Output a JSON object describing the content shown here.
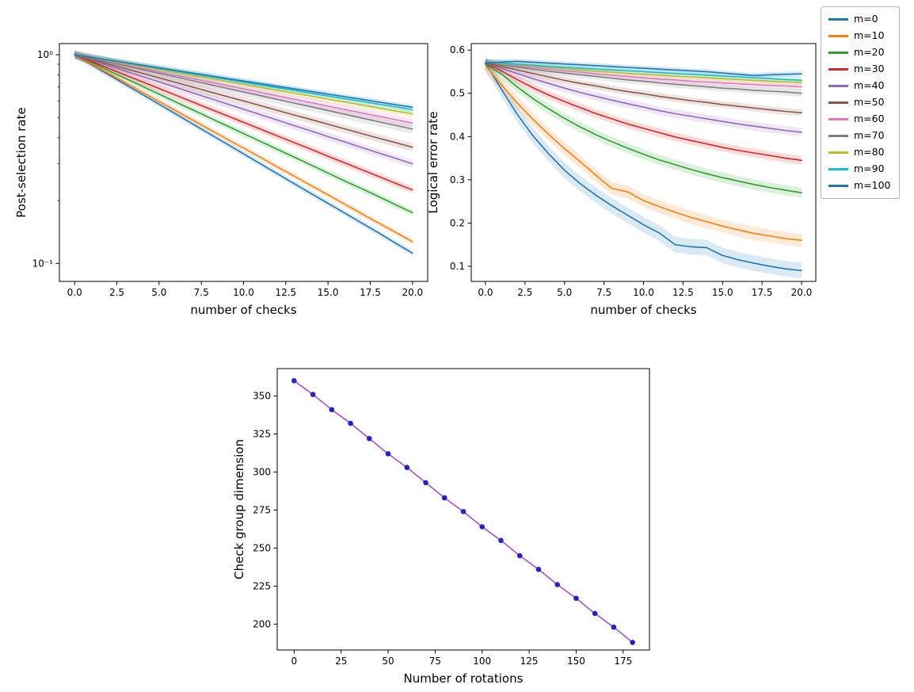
{
  "figure": {
    "background": "#ffffff"
  },
  "legend": {
    "entries": [
      {
        "label": "m=0",
        "color": "#1f77b4"
      },
      {
        "label": "m=10",
        "color": "#ff7f0e"
      },
      {
        "label": "m=20",
        "color": "#2ca02c"
      },
      {
        "label": "m=30",
        "color": "#d62728"
      },
      {
        "label": "m=40",
        "color": "#9467bd"
      },
      {
        "label": "m=50",
        "color": "#8c564b"
      },
      {
        "label": "m=60",
        "color": "#e377c2"
      },
      {
        "label": "m=70",
        "color": "#7f7f7f"
      },
      {
        "label": "m=80",
        "color": "#bcbd22"
      },
      {
        "label": "m=90",
        "color": "#17becf"
      },
      {
        "label": "m=100",
        "color": "#1f77b4"
      }
    ]
  },
  "chart_data": [
    {
      "id": "post-selection-rate",
      "type": "line",
      "title": "",
      "xlabel": "number of checks",
      "ylabel": "Post-selection rate",
      "yscale": "log",
      "grid": false,
      "xlim": [
        -0.9,
        20.9
      ],
      "ylim": [
        0.082,
        1.13
      ],
      "x": [
        0,
        1,
        2,
        3,
        4,
        5,
        6,
        7,
        8,
        9,
        10,
        11,
        12,
        13,
        14,
        15,
        16,
        17,
        18,
        19,
        20
      ],
      "xticks": [
        {
          "v": 0,
          "label": "0.0"
        },
        {
          "v": 2.5,
          "label": "2.5"
        },
        {
          "v": 5,
          "label": "5.0"
        },
        {
          "v": 7.5,
          "label": "7.5"
        },
        {
          "v": 10,
          "label": "10.0"
        },
        {
          "v": 12.5,
          "label": "12.5"
        },
        {
          "v": 15,
          "label": "15.0"
        },
        {
          "v": 17.5,
          "label": "17.5"
        },
        {
          "v": 20,
          "label": "20.0"
        }
      ],
      "yticks": [
        {
          "v": 1.0,
          "label": "10⁰"
        },
        {
          "v": 0.1,
          "label": "10⁻¹"
        }
      ],
      "yminorticks": [
        0.2,
        0.3,
        0.4,
        0.5,
        0.6,
        0.7,
        0.8,
        0.9
      ],
      "series": [
        {
          "name": "m=0",
          "color": "#1f77b4",
          "band_rel": 0.03,
          "y": [
            1.0,
            0.896,
            0.803,
            0.72,
            0.646,
            0.579,
            0.519,
            0.465,
            0.417,
            0.374,
            0.335,
            0.3,
            0.269,
            0.241,
            0.216,
            0.194,
            0.174,
            0.156,
            0.14,
            0.125,
            0.112
          ]
        },
        {
          "name": "m=10",
          "color": "#ff7f0e",
          "band_rel": 0.03,
          "y": [
            1.0,
            0.902,
            0.814,
            0.734,
            0.662,
            0.597,
            0.539,
            0.486,
            0.438,
            0.395,
            0.357,
            0.322,
            0.29,
            0.262,
            0.236,
            0.213,
            0.192,
            0.173,
            0.156,
            0.141,
            0.127
          ]
        },
        {
          "name": "m=20",
          "color": "#2ca02c",
          "band_rel": 0.035,
          "y": [
            1.0,
            0.917,
            0.84,
            0.77,
            0.706,
            0.647,
            0.593,
            0.544,
            0.498,
            0.457,
            0.419,
            0.384,
            0.352,
            0.323,
            0.296,
            0.271,
            0.248,
            0.228,
            0.209,
            0.191,
            0.175
          ]
        },
        {
          "name": "m=30",
          "color": "#d62728",
          "band_rel": 0.04,
          "y": [
            1.0,
            0.928,
            0.861,
            0.799,
            0.742,
            0.689,
            0.639,
            0.593,
            0.55,
            0.511,
            0.474,
            0.44,
            0.408,
            0.379,
            0.352,
            0.326,
            0.303,
            0.281,
            0.261,
            0.242,
            0.225
          ]
        },
        {
          "name": "m=40",
          "color": "#9467bd",
          "band_rel": 0.045,
          "y": [
            1.0,
            0.942,
            0.887,
            0.835,
            0.786,
            0.74,
            0.697,
            0.656,
            0.618,
            0.582,
            0.548,
            0.516,
            0.486,
            0.457,
            0.431,
            0.405,
            0.382,
            0.359,
            0.338,
            0.319,
            0.3
          ]
        },
        {
          "name": "m=50",
          "color": "#8c564b",
          "band_rel": 0.045,
          "y": [
            1.0,
            0.95,
            0.903,
            0.858,
            0.815,
            0.774,
            0.736,
            0.699,
            0.664,
            0.631,
            0.6,
            0.57,
            0.541,
            0.514,
            0.489,
            0.464,
            0.441,
            0.419,
            0.398,
            0.379,
            0.36
          ]
        },
        {
          "name": "m=60",
          "color": "#e377c2",
          "band_rel": 0.05,
          "y": [
            1.0,
            0.963,
            0.927,
            0.893,
            0.86,
            0.828,
            0.797,
            0.768,
            0.739,
            0.712,
            0.685,
            0.66,
            0.635,
            0.612,
            0.589,
            0.567,
            0.546,
            0.526,
            0.507,
            0.488,
            0.47
          ]
        },
        {
          "name": "m=70",
          "color": "#7f7f7f",
          "band_rel": 0.05,
          "y": [
            1.0,
            0.96,
            0.921,
            0.884,
            0.849,
            0.814,
            0.782,
            0.75,
            0.72,
            0.691,
            0.663,
            0.637,
            0.611,
            0.586,
            0.563,
            0.54,
            0.518,
            0.497,
            0.477,
            0.458,
            0.44
          ]
        },
        {
          "name": "m=80",
          "color": "#bcbd22",
          "band_rel": 0.04,
          "y": [
            1.0,
            0.968,
            0.937,
            0.906,
            0.877,
            0.849,
            0.822,
            0.795,
            0.77,
            0.745,
            0.721,
            0.698,
            0.675,
            0.654,
            0.633,
            0.612,
            0.593,
            0.574,
            0.555,
            0.537,
            0.52
          ]
        },
        {
          "name": "m=90",
          "color": "#17becf",
          "band_rel": 0.035,
          "y": [
            1.0,
            0.97,
            0.941,
            0.913,
            0.886,
            0.859,
            0.834,
            0.809,
            0.785,
            0.761,
            0.738,
            0.716,
            0.695,
            0.674,
            0.654,
            0.634,
            0.615,
            0.597,
            0.579,
            0.562,
            0.545
          ]
        },
        {
          "name": "m=100",
          "color": "#1f77b4",
          "band_rel": 0.03,
          "y": [
            1.0,
            0.971,
            0.944,
            0.917,
            0.89,
            0.865,
            0.84,
            0.816,
            0.793,
            0.77,
            0.748,
            0.727,
            0.706,
            0.686,
            0.666,
            0.647,
            0.629,
            0.611,
            0.593,
            0.576,
            0.56
          ]
        }
      ]
    },
    {
      "id": "logical-error-rate",
      "type": "line",
      "title": "",
      "xlabel": "number of checks",
      "ylabel": "Logical error rate",
      "yscale": "linear",
      "grid": false,
      "xlim": [
        -0.9,
        20.9
      ],
      "ylim": [
        0.065,
        0.615
      ],
      "x": [
        0,
        1,
        2,
        3,
        4,
        5,
        6,
        7,
        8,
        9,
        10,
        11,
        12,
        13,
        14,
        15,
        16,
        17,
        18,
        19,
        20
      ],
      "xticks": [
        {
          "v": 0,
          "label": "0.0"
        },
        {
          "v": 2.5,
          "label": "2.5"
        },
        {
          "v": 5,
          "label": "5.0"
        },
        {
          "v": 7.5,
          "label": "7.5"
        },
        {
          "v": 10,
          "label": "10.0"
        },
        {
          "v": 12.5,
          "label": "12.5"
        },
        {
          "v": 15,
          "label": "15.0"
        },
        {
          "v": 17.5,
          "label": "17.5"
        },
        {
          "v": 20,
          "label": "20.0"
        }
      ],
      "yticks": [
        {
          "v": 0.1,
          "label": "0.1"
        },
        {
          "v": 0.2,
          "label": "0.2"
        },
        {
          "v": 0.3,
          "label": "0.3"
        },
        {
          "v": 0.4,
          "label": "0.4"
        },
        {
          "v": 0.5,
          "label": "0.5"
        },
        {
          "v": 0.6,
          "label": "0.6"
        }
      ],
      "series": [
        {
          "name": "m=0",
          "color": "#1f77b4",
          "band_abs": 0.018,
          "y": [
            0.57,
            0.51,
            0.452,
            0.402,
            0.36,
            0.322,
            0.291,
            0.264,
            0.24,
            0.218,
            0.196,
            0.177,
            0.15,
            0.145,
            0.143,
            0.125,
            0.115,
            0.107,
            0.1,
            0.094,
            0.09
          ]
        },
        {
          "name": "m=10",
          "color": "#ff7f0e",
          "band_abs": 0.015,
          "y": [
            0.565,
            0.52,
            0.478,
            0.44,
            0.405,
            0.372,
            0.342,
            0.31,
            0.28,
            0.272,
            0.252,
            0.238,
            0.225,
            0.213,
            0.203,
            0.193,
            0.184,
            0.176,
            0.17,
            0.164,
            0.16
          ]
        },
        {
          "name": "m=20",
          "color": "#2ca02c",
          "band_abs": 0.012,
          "y": [
            0.568,
            0.545,
            0.515,
            0.488,
            0.464,
            0.442,
            0.422,
            0.404,
            0.388,
            0.373,
            0.359,
            0.346,
            0.335,
            0.324,
            0.314,
            0.305,
            0.297,
            0.289,
            0.282,
            0.276,
            0.27
          ]
        },
        {
          "name": "m=30",
          "color": "#d62728",
          "band_abs": 0.01,
          "y": [
            0.57,
            0.552,
            0.532,
            0.513,
            0.496,
            0.481,
            0.467,
            0.453,
            0.441,
            0.429,
            0.419,
            0.409,
            0.399,
            0.391,
            0.383,
            0.375,
            0.368,
            0.362,
            0.356,
            0.35,
            0.345
          ]
        },
        {
          "name": "m=40",
          "color": "#9467bd",
          "band_abs": 0.01,
          "y": [
            0.57,
            0.558,
            0.546,
            0.534,
            0.523,
            0.512,
            0.502,
            0.493,
            0.484,
            0.476,
            0.468,
            0.46,
            0.453,
            0.447,
            0.441,
            0.435,
            0.429,
            0.424,
            0.419,
            0.414,
            0.41
          ]
        },
        {
          "name": "m=50",
          "color": "#8c564b",
          "band_abs": 0.008,
          "y": [
            0.571,
            0.562,
            0.554,
            0.546,
            0.538,
            0.53,
            0.523,
            0.517,
            0.51,
            0.504,
            0.499,
            0.493,
            0.488,
            0.483,
            0.479,
            0.474,
            0.47,
            0.466,
            0.462,
            0.458,
            0.455
          ]
        },
        {
          "name": "m=60",
          "color": "#e377c2",
          "band_abs": 0.008,
          "y": [
            0.572,
            0.568,
            0.564,
            0.56,
            0.556,
            0.552,
            0.549,
            0.545,
            0.542,
            0.539,
            0.536,
            0.533,
            0.531,
            0.528,
            0.526,
            0.524,
            0.522,
            0.52,
            0.518,
            0.517,
            0.515
          ]
        },
        {
          "name": "m=70",
          "color": "#7f7f7f",
          "band_abs": 0.008,
          "y": [
            0.571,
            0.566,
            0.561,
            0.556,
            0.551,
            0.547,
            0.543,
            0.539,
            0.535,
            0.531,
            0.528,
            0.524,
            0.521,
            0.518,
            0.515,
            0.512,
            0.51,
            0.507,
            0.505,
            0.503,
            0.5
          ]
        },
        {
          "name": "m=80",
          "color": "#bcbd22",
          "band_abs": 0.008,
          "y": [
            0.572,
            0.569,
            0.566,
            0.563,
            0.56,
            0.557,
            0.554,
            0.551,
            0.549,
            0.546,
            0.544,
            0.542,
            0.54,
            0.538,
            0.536,
            0.534,
            0.532,
            0.53,
            0.528,
            0.527,
            0.525
          ]
        },
        {
          "name": "m=90",
          "color": "#17becf",
          "band_abs": 0.008,
          "y": [
            0.572,
            0.57,
            0.567,
            0.565,
            0.562,
            0.56,
            0.558,
            0.556,
            0.554,
            0.552,
            0.55,
            0.548,
            0.546,
            0.544,
            0.542,
            0.54,
            0.538,
            0.536,
            0.534,
            0.532,
            0.53
          ]
        },
        {
          "name": "m=100",
          "color": "#1f77b4",
          "band_abs": 0.006,
          "y": [
            0.57,
            0.572,
            0.574,
            0.572,
            0.57,
            0.568,
            0.566,
            0.564,
            0.562,
            0.56,
            0.558,
            0.556,
            0.554,
            0.552,
            0.55,
            0.547,
            0.544,
            0.541,
            0.543,
            0.544,
            0.545
          ]
        }
      ]
    },
    {
      "id": "check-group-dimension",
      "type": "scatter-line",
      "title": "",
      "xlabel": "Number of rotations",
      "ylabel": "Check group dimension",
      "yscale": "linear",
      "grid": false,
      "xlim": [
        -9,
        189
      ],
      "ylim": [
        183,
        368
      ],
      "x": [
        0,
        10,
        20,
        30,
        40,
        50,
        60,
        70,
        80,
        90,
        100,
        110,
        120,
        130,
        140,
        150,
        160,
        170,
        180
      ],
      "xticks": [
        {
          "v": 0,
          "label": "0"
        },
        {
          "v": 25,
          "label": "25"
        },
        {
          "v": 50,
          "label": "50"
        },
        {
          "v": 75,
          "label": "75"
        },
        {
          "v": 100,
          "label": "100"
        },
        {
          "v": 125,
          "label": "125"
        },
        {
          "v": 150,
          "label": "150"
        },
        {
          "v": 175,
          "label": "175"
        }
      ],
      "yticks": [
        {
          "v": 200,
          "label": "200"
        },
        {
          "v": 225,
          "label": "225"
        },
        {
          "v": 250,
          "label": "250"
        },
        {
          "v": 275,
          "label": "275"
        },
        {
          "v": 300,
          "label": "300"
        },
        {
          "v": 325,
          "label": "325"
        },
        {
          "v": 350,
          "label": "350"
        }
      ],
      "series": [
        {
          "name": "check group dimension",
          "color": "#a352c7",
          "marker_color": "#2323c4",
          "markers": true,
          "y": [
            360,
            351,
            341,
            332,
            322,
            312,
            303,
            293,
            283,
            274,
            264,
            255,
            245,
            236,
            226,
            217,
            207,
            198,
            188
          ]
        }
      ]
    }
  ]
}
